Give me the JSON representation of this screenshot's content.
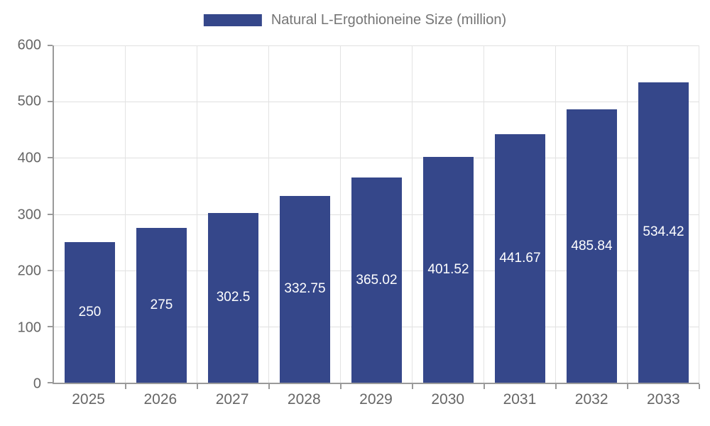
{
  "chart_data": {
    "type": "bar",
    "title": "Natural L-Ergothioneine Size (million)",
    "categories": [
      "2025",
      "2026",
      "2027",
      "2028",
      "2029",
      "2030",
      "2031",
      "2032",
      "2033"
    ],
    "values": [
      250,
      275,
      302.5,
      332.75,
      365.02,
      401.52,
      441.67,
      485.84,
      534.42
    ],
    "value_labels": [
      "250",
      "275",
      "302.5",
      "332.75",
      "365.02",
      "401.52",
      "441.67",
      "485.84",
      "534.42"
    ],
    "xlabel": "",
    "ylabel": "",
    "ylim": [
      0,
      600
    ],
    "yticks": [
      0,
      100,
      200,
      300,
      400,
      500,
      600
    ],
    "grid": true,
    "legend_position": "top",
    "bar_color": "#35478A",
    "value_label_color": "#ffffff",
    "axis_text_color": "#666666",
    "grid_color": "#e0e0e0",
    "axis_line_color": "#9a9a9a"
  },
  "legend": {
    "label": "Natural L-Ergothioneine Size (million)"
  }
}
